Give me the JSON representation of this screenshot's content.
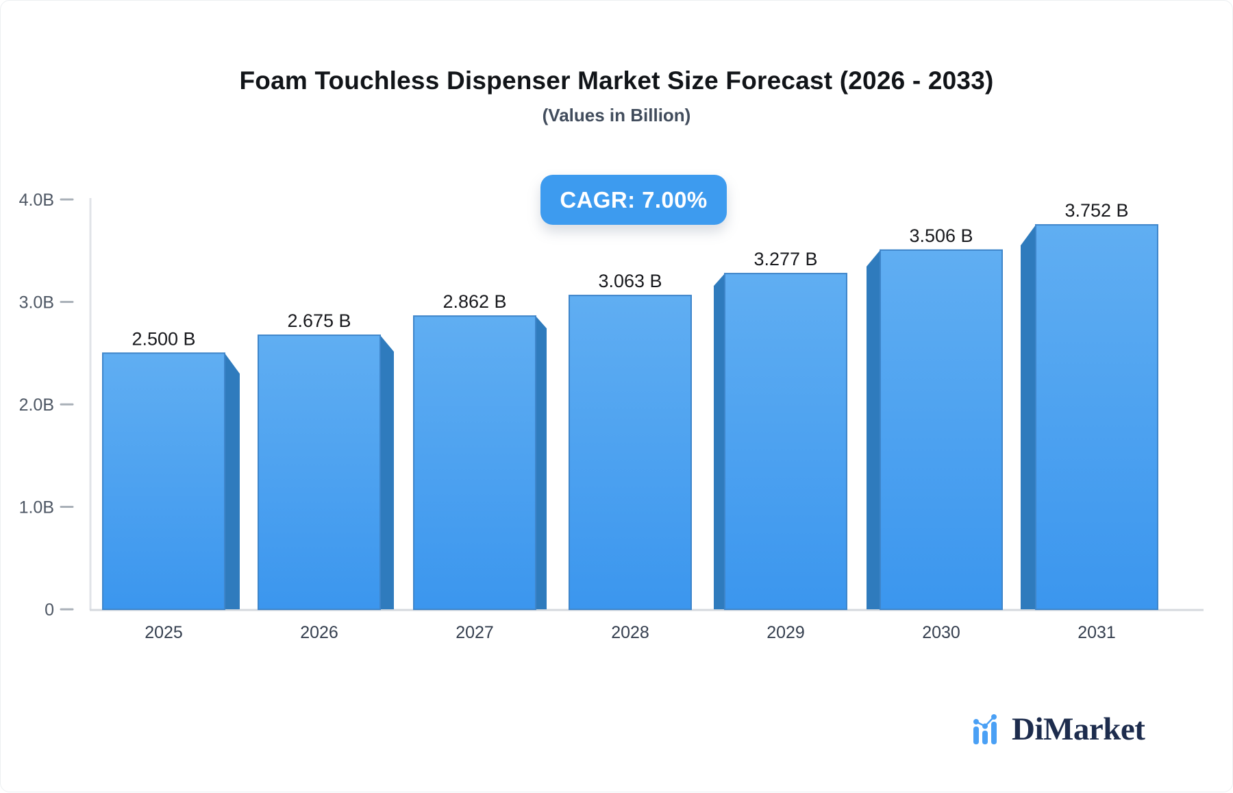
{
  "header": {
    "title": "Foam Touchless Dispenser Market Size Forecast (2026 - 2033)",
    "subtitle": "(Values in Billion)"
  },
  "badge": {
    "label": "CAGR: 7.00%"
  },
  "chart_data": {
    "type": "bar",
    "title": "Foam Touchless Dispenser Market Size Forecast (2026 - 2033)",
    "subtitle": "(Values in Billion)",
    "cagr_label": "CAGR: 7.00%",
    "categories": [
      "2025",
      "2026",
      "2027",
      "2028",
      "2029",
      "2030",
      "2031"
    ],
    "values": [
      2.5,
      2.675,
      2.862,
      3.063,
      3.277,
      3.506,
      3.752
    ],
    "value_labels": [
      "2.500 B",
      "2.675 B",
      "2.862 B",
      "3.063 B",
      "3.277 B",
      "3.506 B",
      "3.752 B"
    ],
    "xlabel": "",
    "ylabel": "",
    "ylim": [
      0,
      4
    ],
    "y_ticks": [
      {
        "value": 4,
        "label": "4.0B"
      },
      {
        "value": 3,
        "label": "3.0B"
      },
      {
        "value": 2,
        "label": "2.0B"
      },
      {
        "value": 1,
        "label": "1.0B"
      },
      {
        "value": 0,
        "label": "0"
      }
    ],
    "grid": false,
    "legend": "none",
    "bar_style": "3d-perspective, vanishing point at center bar"
  },
  "colors": {
    "bar_face_top": "#60aef2",
    "bar_face_bottom": "#3b96ee",
    "bar_side": "#2f7bbd",
    "bar_stroke": "#3e85ca",
    "badge_bg": "#3d9bef",
    "badge_text": "#ffffff",
    "axis_line": "#e0e3e8",
    "baseline": "#d5d9de",
    "tick": "#a9b0b8",
    "tick_label": "#4d5663",
    "year_label": "#343e4e",
    "value_label": "#17181c",
    "title": "#111418",
    "subtitle": "#414c5c",
    "logo_navy": "#1d2c4d",
    "logo_blue": "#4aa0f5"
  },
  "logo": {
    "text": "DiMarket",
    "icon": "mini-bar-chart-icon"
  }
}
